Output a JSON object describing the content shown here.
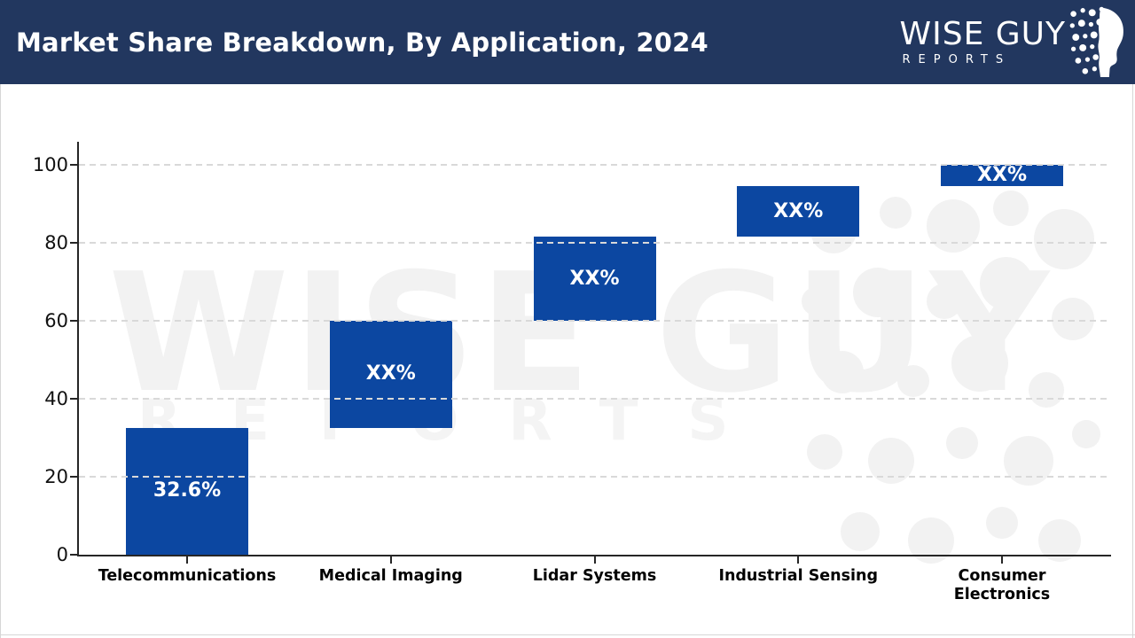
{
  "header": {
    "title": "Market Share Breakdown, By Application, 2024",
    "background_color": "#22375f"
  },
  "logo": {
    "line1": "WISE GUY",
    "line2": "REPORTS"
  },
  "watermark": {
    "line1": "WISE GUY",
    "line2": "REPORTS"
  },
  "chart_data": {
    "type": "bar",
    "subtype": "waterfall",
    "title": "Market Share Breakdown, By Application, 2024",
    "categories": [
      "Telecommunications",
      "Medical Imaging",
      "Lidar Systems",
      "Industrial Sensing",
      "Consumer\nElectronics"
    ],
    "segments": [
      {
        "category": "Telecommunications",
        "start": 0,
        "end": 32.6,
        "label": "32.6%"
      },
      {
        "category": "Medical Imaging",
        "start": 32.6,
        "end": 60.0,
        "label": "XX%"
      },
      {
        "category": "Lidar Systems",
        "start": 60.0,
        "end": 81.5,
        "label": "XX%"
      },
      {
        "category": "Industrial Sensing",
        "start": 81.5,
        "end": 94.5,
        "label": "XX%"
      },
      {
        "category": "Consumer\nElectronics",
        "start": 94.5,
        "end": 100.0,
        "label": "XX%"
      }
    ],
    "y_ticks": [
      0,
      20,
      40,
      60,
      80,
      100
    ],
    "ylim": [
      0,
      106
    ],
    "xlabel": "",
    "ylabel": "",
    "grid": "horizontal-dashed",
    "legend": "none",
    "bar_color": "#0c47a1",
    "bar_label_color": "#ffffff",
    "axis_color": "#262626",
    "grid_color": "#d9d9d9"
  }
}
